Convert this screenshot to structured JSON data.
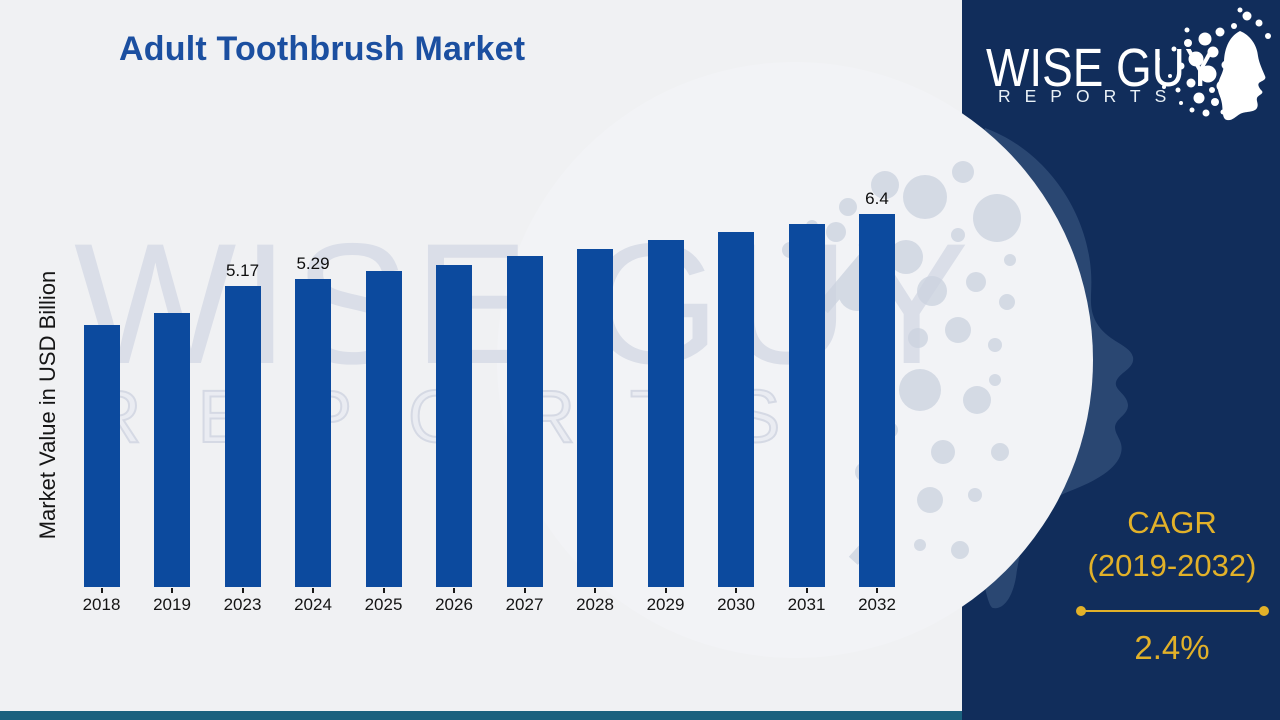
{
  "title": "Adult Toothbrush Market",
  "y_axis_label": "Market Value in USD Billion",
  "watermark": {
    "line1": "WISE GUY",
    "line2": "REPORTS"
  },
  "logo": {
    "line1": "WISE GUY",
    "line2": "REPORTS"
  },
  "cagr": {
    "heading": "CAGR",
    "range": "(2019-2032)",
    "value": "2.4%"
  },
  "colors": {
    "bar": "#0c4a9e",
    "title": "#1b4fa0",
    "panel_navy": "#112d5b",
    "accent_gold": "#e2b129",
    "footer_teal": "#1b617e",
    "background": "#f0f1f3"
  },
  "chart_data": {
    "type": "bar",
    "title": "Adult Toothbrush Market",
    "xlabel": "",
    "ylabel": "Market Value in USD Billion",
    "unit": "USD Billion",
    "categories": [
      "2018",
      "2019",
      "2023",
      "2024",
      "2025",
      "2026",
      "2027",
      "2028",
      "2029",
      "2030",
      "2031",
      "2032"
    ],
    "values": [
      4.5,
      4.7,
      5.17,
      5.29,
      5.42,
      5.53,
      5.67,
      5.8,
      5.96,
      6.09,
      6.23,
      6.4
    ],
    "bar_labels": [
      "",
      "",
      "5.17",
      "5.29",
      "",
      "",
      "",
      "",
      "",
      "",
      "",
      "6.4"
    ],
    "ylim": [
      0,
      7
    ],
    "grid": false,
    "legend": false
  }
}
